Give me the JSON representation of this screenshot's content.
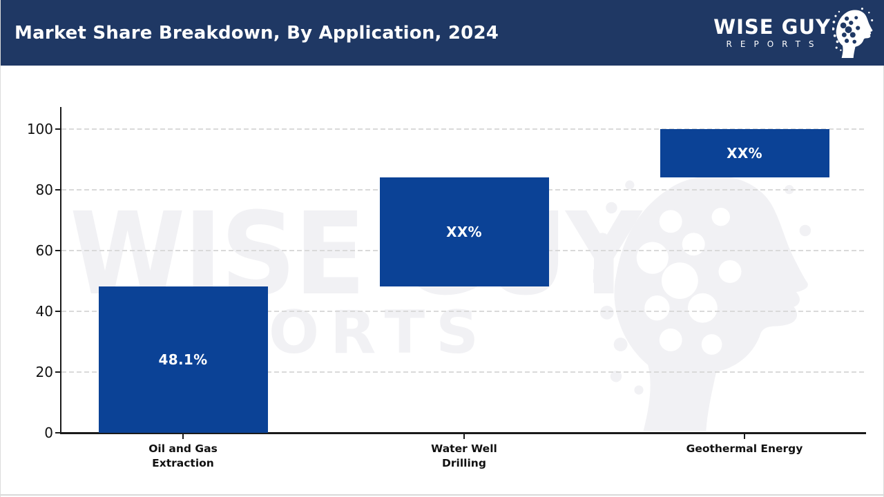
{
  "header": {
    "title": "Market Share Breakdown, By Application, 2024",
    "logo": {
      "line1": "WISE GUY",
      "line2": "REPORTS"
    }
  },
  "watermark": {
    "line1": "WISE GUY",
    "line2": "REPORTS"
  },
  "chart_data": {
    "type": "bar",
    "variant": "floating-waterfall",
    "title": "Market Share Breakdown, By Application, 2024",
    "categories": [
      [
        "Oil and Gas",
        "Extraction"
      ],
      [
        "Water Well",
        "Drilling"
      ],
      [
        "Geothermal Energy"
      ]
    ],
    "segments": [
      {
        "category": "Oil and Gas Extraction",
        "start": 0,
        "end": 48.1,
        "label": "48.1%"
      },
      {
        "category": "Water Well Drilling",
        "start": 48.1,
        "end": 84,
        "label": "XX%"
      },
      {
        "category": "Geothermal Energy",
        "start": 84,
        "end": 100,
        "label": "XX%"
      }
    ],
    "ylim": [
      0,
      100
    ],
    "yticks": [
      0,
      20,
      40,
      60,
      80,
      100
    ],
    "xlabel": "",
    "ylabel": "",
    "grid": "horizontal-dashed",
    "legend": "none",
    "bar_color": "#0b4296",
    "value_label_color": "#ffffff"
  },
  "colors": {
    "header_bg": "#1f3864",
    "bar": "#0b4296",
    "grid": "#d9d9d9",
    "axis": "#1a1a1a",
    "watermark": "#f1f1f4"
  }
}
